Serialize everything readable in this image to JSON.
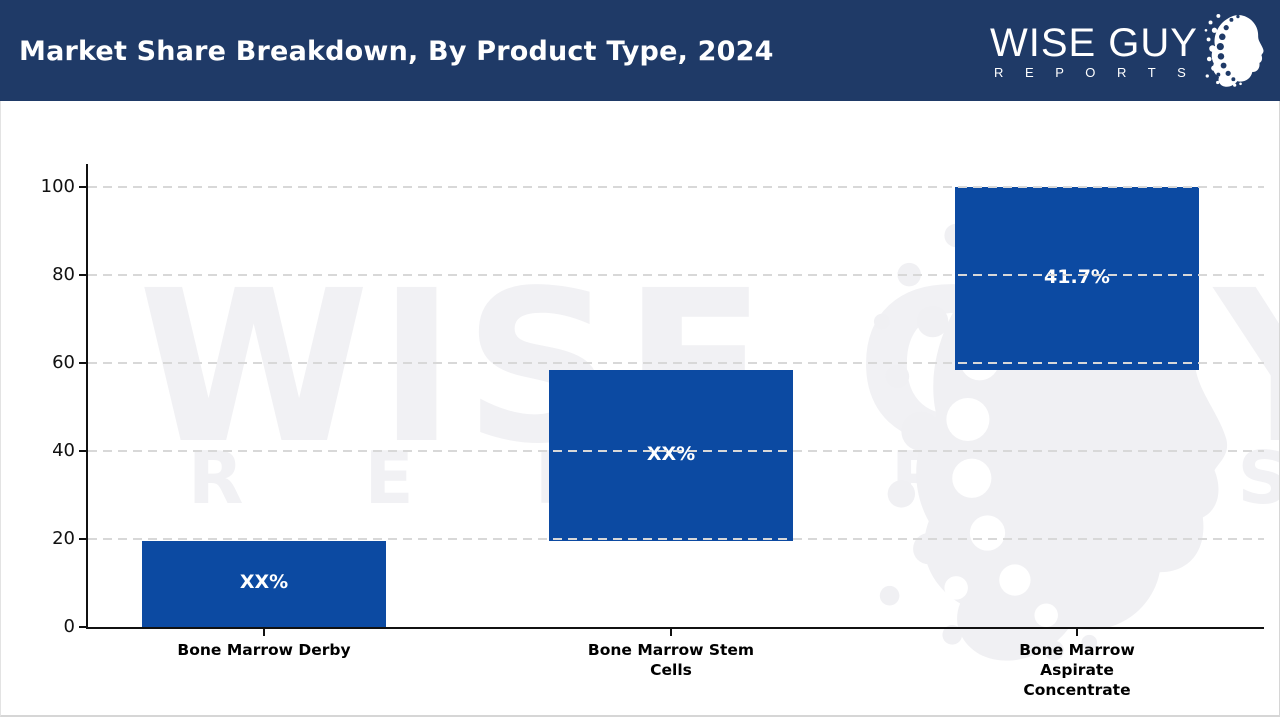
{
  "header": {
    "title": "Market Share Breakdown, By Product Type, 2024",
    "logo": {
      "primary": "WISE GUY",
      "secondary": "R E P O R T S"
    }
  },
  "watermark": {
    "primary": "WISE GUY",
    "secondary": "R E P O R T S"
  },
  "colors": {
    "header_bg": "#1f3a67",
    "bar": "#0c4aa2",
    "grid": "#d8d8d8",
    "axis": "#111111",
    "bar_label": "#ffffff",
    "title_text": "#ffffff",
    "watermark": "#f1f1f4"
  },
  "chart_data": {
    "type": "bar",
    "subtype": "floating-waterfall",
    "title": "Market Share Breakdown, By Product Type, 2024",
    "xlabel": "",
    "ylabel": "",
    "categories": [
      "Bone Marrow Derby",
      "Bone Marrow Stem Cells",
      "Bone Marrow Aspirate Concentrate"
    ],
    "category_lines": [
      [
        "Bone Marrow Derby"
      ],
      [
        "Bone Marrow Stem",
        "Cells"
      ],
      [
        "Bone Marrow",
        "Aspirate",
        "Concentrate"
      ]
    ],
    "segments": [
      {
        "category": "Bone Marrow Derby",
        "start": 0,
        "end": 19.5,
        "label": "XX%"
      },
      {
        "category": "Bone Marrow Stem Cells",
        "start": 19.5,
        "end": 58.3,
        "label": "XX%"
      },
      {
        "category": "Bone Marrow Aspirate Concentrate",
        "start": 58.3,
        "end": 100,
        "label": "41.7%"
      }
    ],
    "y_ticks": [
      0,
      20,
      40,
      60,
      80,
      100
    ],
    "ylim": [
      0,
      105
    ],
    "grid": "dashed-horizontal-over-bars",
    "legend": "none",
    "bar_color": "#0c4aa2"
  }
}
